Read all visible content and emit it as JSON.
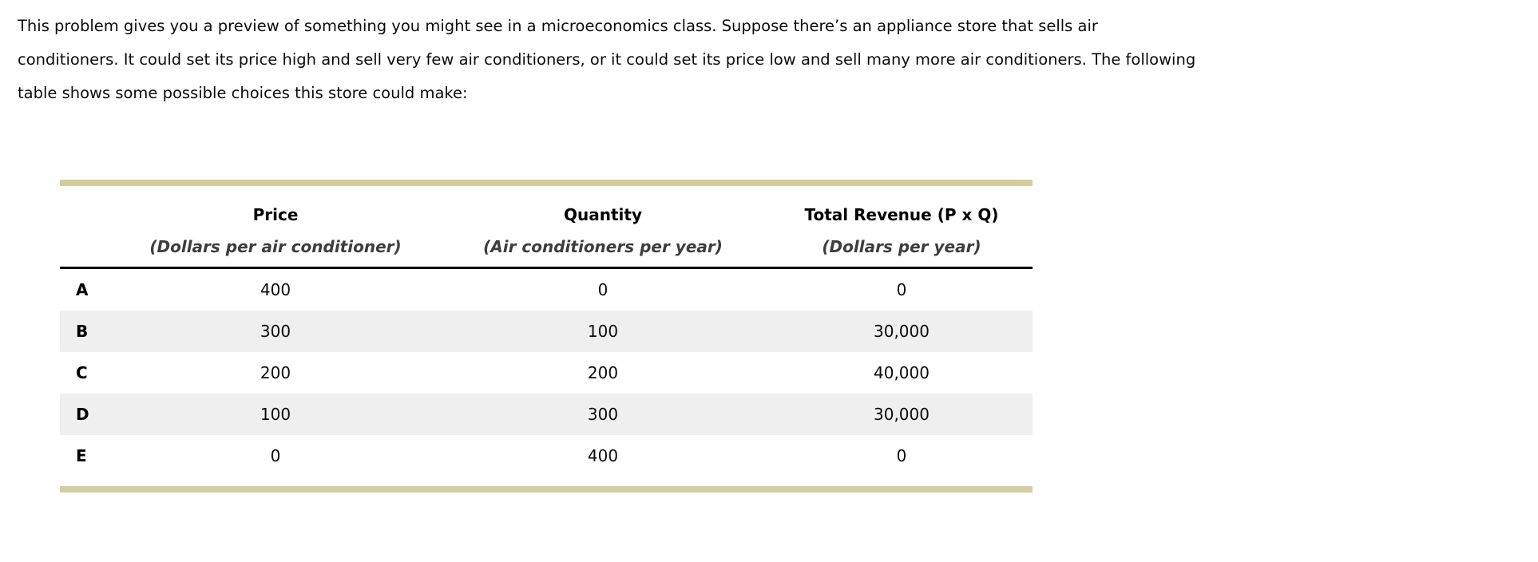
{
  "paragraph": {
    "lines": [
      "This problem gives you a preview of something you might see in a microeconomics class. Suppose there’s an appliance store that sells air",
      "conditioners. It could set its price high and sell very few air conditioners, or it could set its price low and sell many more air conditioners. The following",
      "table shows some possible choices this store could make:"
    ]
  },
  "table": {
    "columns": [
      {
        "label": "Price",
        "sublabel": "(Dollars per air conditioner)"
      },
      {
        "label": "Quantity",
        "sublabel": "(Air conditioners per year)"
      },
      {
        "label": "Total Revenue (P x Q)",
        "sublabel": "(Dollars per year)"
      }
    ],
    "rows": [
      {
        "letter": "A",
        "price": "400",
        "quantity": "0",
        "total_revenue": "0"
      },
      {
        "letter": "B",
        "price": "300",
        "quantity": "100",
        "total_revenue": "30,000"
      },
      {
        "letter": "C",
        "price": "200",
        "quantity": "200",
        "total_revenue": "40,000"
      },
      {
        "letter": "D",
        "price": "100",
        "quantity": "300",
        "total_revenue": "30,000"
      },
      {
        "letter": "E",
        "price": "0",
        "quantity": "400",
        "total_revenue": "0"
      }
    ]
  },
  "colors": {
    "accent_bar": "#d5cda2",
    "row_stripe": "#efefef",
    "header_divider": "#000000",
    "subheader_text": "#3d3d3d",
    "body_text": "#0b0b0b"
  }
}
